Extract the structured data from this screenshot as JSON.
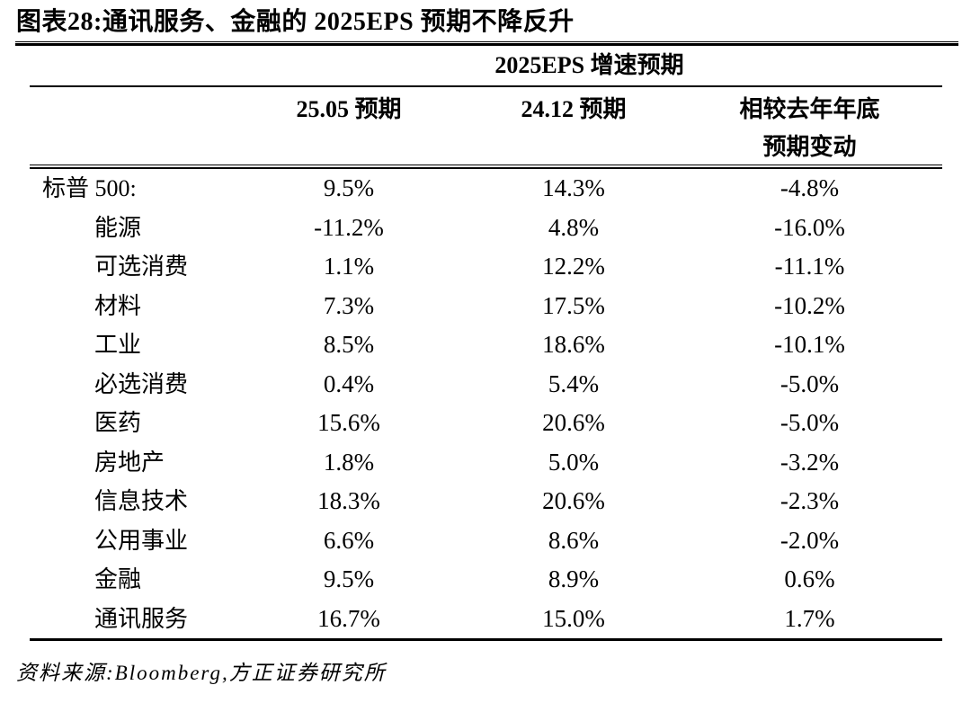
{
  "figure": {
    "title": "图表28:通讯服务、金融的 2025EPS 预期不降反升",
    "source": "资料来源:Bloomberg,方正证券研究所"
  },
  "chart_data": {
    "type": "table",
    "group_header": "2025EPS 增速预期",
    "columns": [
      "25.05 预期",
      "24.12 预期",
      "相较去年年底\n预期变动"
    ],
    "rows": [
      {
        "label": "标普 500:",
        "values": [
          "9.5%",
          "14.3%",
          "-4.8%"
        ]
      },
      {
        "label": "能源",
        "values": [
          "-11.2%",
          "4.8%",
          "-16.0%"
        ]
      },
      {
        "label": "可选消费",
        "values": [
          "1.1%",
          "12.2%",
          "-11.1%"
        ]
      },
      {
        "label": "材料",
        "values": [
          "7.3%",
          "17.5%",
          "-10.2%"
        ]
      },
      {
        "label": "工业",
        "values": [
          "8.5%",
          "18.6%",
          "-10.1%"
        ]
      },
      {
        "label": "必选消费",
        "values": [
          "0.4%",
          "5.4%",
          "-5.0%"
        ]
      },
      {
        "label": "医药",
        "values": [
          "15.6%",
          "20.6%",
          "-5.0%"
        ]
      },
      {
        "label": "房地产",
        "values": [
          "1.8%",
          "5.0%",
          "-3.2%"
        ]
      },
      {
        "label": "信息技术",
        "values": [
          "18.3%",
          "20.6%",
          "-2.3%"
        ]
      },
      {
        "label": "公用事业",
        "values": [
          "6.6%",
          "8.6%",
          "-2.0%"
        ]
      },
      {
        "label": "金融",
        "values": [
          "9.5%",
          "8.9%",
          "0.6%"
        ]
      },
      {
        "label": "通讯服务",
        "values": [
          "16.7%",
          "15.0%",
          "1.7%"
        ]
      }
    ]
  }
}
